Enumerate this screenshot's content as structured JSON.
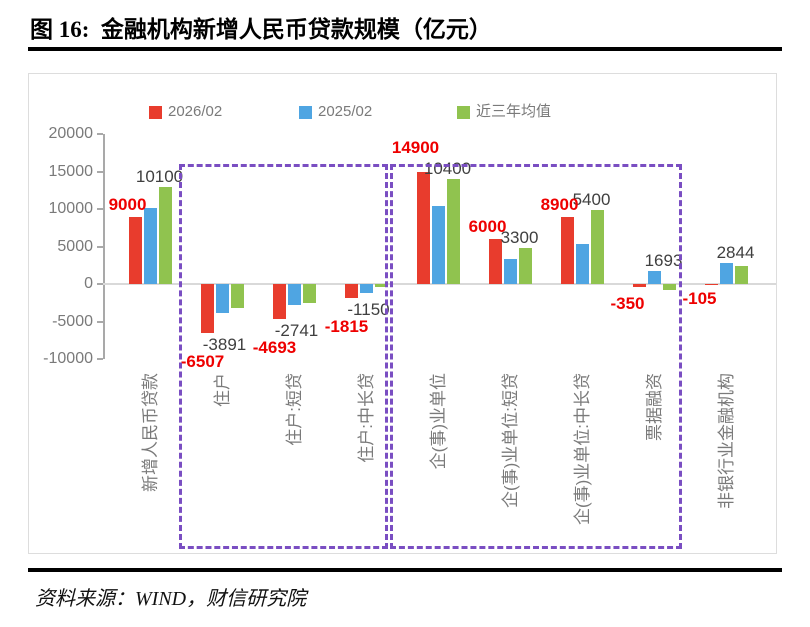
{
  "figure": {
    "title": "图 16:  金融机构新增人民币贷款规模（亿元）",
    "source": "资料来源：WIND，财信研究院"
  },
  "colors": {
    "series_red": "#E83C2D",
    "series_blue": "#4FA5E2",
    "series_green": "#90C34F",
    "label_red": "#EE0000",
    "label_gray": "#3F3F3F",
    "axis_text": "#7A7A7A",
    "highlight_box": "#7A4EC2",
    "zero_gridline": "#D9D9D9",
    "rule_black": "#000000"
  },
  "chart_data": {
    "type": "bar",
    "title": "金融机构新增人民币贷款规模（亿元）",
    "unit": "亿元",
    "categories": [
      "新增人民币贷款",
      "住户",
      "住户:短贷",
      "住户:中长贷",
      "企(事)业单位",
      "企(事)业单位:短贷",
      "企(事)业单位:中长贷",
      "票据融资",
      "非银行业金融机构"
    ],
    "series": [
      {
        "name": "2026/02",
        "color_key": "series_red",
        "values": [
          9000,
          -6507,
          -4693,
          -1815,
          14900,
          6000,
          8900,
          -350,
          -105
        ],
        "data_labels": true,
        "label_style": "red"
      },
      {
        "name": "2025/02",
        "color_key": "series_blue",
        "values": [
          10100,
          -3891,
          -2741,
          -1150,
          10400,
          3300,
          5400,
          1693,
          2844
        ],
        "data_labels": true,
        "label_style": "gray"
      },
      {
        "name": "近三年均值",
        "color_key": "series_green",
        "values": [
          13000,
          -3200,
          -2500,
          -400,
          14000,
          4800,
          9900,
          -800,
          2400
        ],
        "data_labels": false,
        "estimated_from_pixels": true
      }
    ],
    "ylim": [
      -10000,
      20000
    ],
    "yticks": [
      20000,
      15000,
      10000,
      5000,
      0,
      -5000,
      -10000
    ],
    "legend_position": "top",
    "gridlines": "zero_only",
    "highlight_boxes": [
      {
        "from_index": 1,
        "to_index": 3
      },
      {
        "from_index": 4,
        "to_index": 7
      }
    ]
  }
}
